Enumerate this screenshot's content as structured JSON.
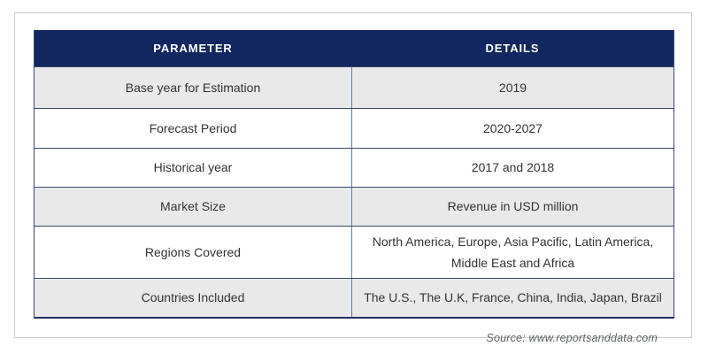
{
  "table": {
    "columns": [
      "PARAMETER",
      "DETAILS"
    ],
    "rows": [
      {
        "parameter": "Base year for Estimation",
        "details": "2019"
      },
      {
        "parameter": "Forecast Period",
        "details": "2020-2027"
      },
      {
        "parameter": "Historical year",
        "details": "2017 and 2018"
      },
      {
        "parameter": "Market Size",
        "details": "Revenue in USD million"
      },
      {
        "parameter": "Regions Covered",
        "details": "North America, Europe, Asia Pacific, Latin America, Middle East and Africa"
      },
      {
        "parameter": "Countries Included",
        "details": "The U.S., The  U.K, France, China, India, Japan, Brazil"
      }
    ]
  },
  "source": {
    "label": "Source: www.reportsanddata.com"
  },
  "colors": {
    "header_bg": "#12265f",
    "header_text": "#ffffff",
    "shaded_row_bg": "#e9e9e9",
    "text_color": "#333333",
    "row_divider": "#3a4668",
    "column_divider": "#5b79b4",
    "table_border": "#3a4a78",
    "table_bottom": "#203061",
    "source_color": "#5f6368"
  }
}
